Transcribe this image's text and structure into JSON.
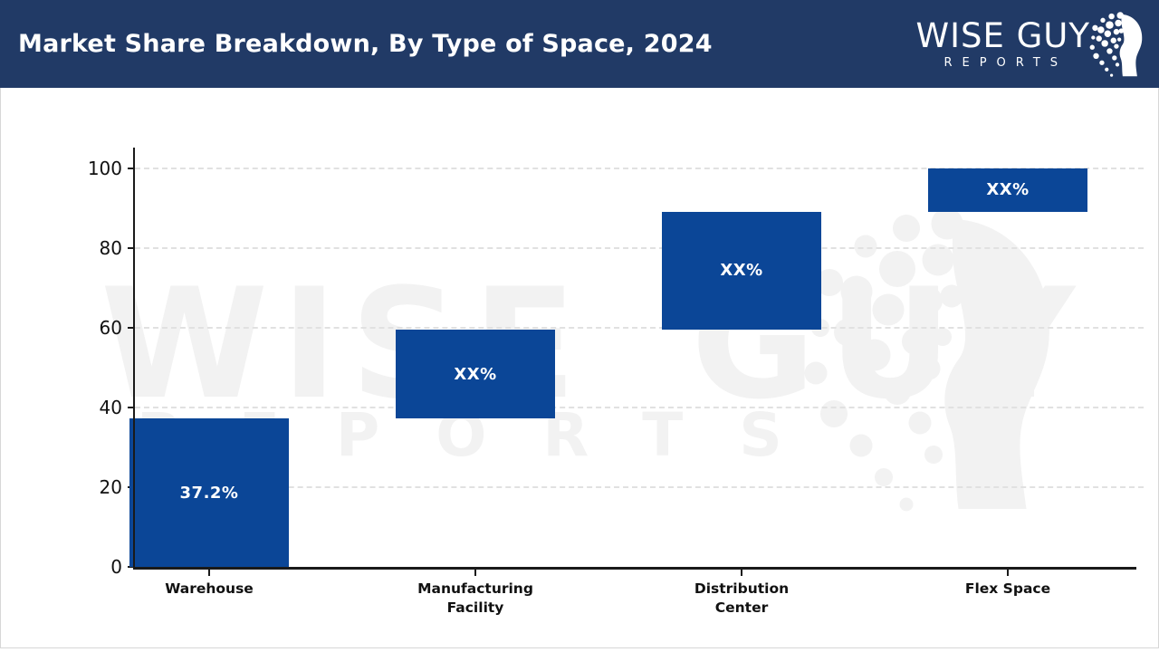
{
  "header": {
    "title": "Market Share Breakdown, By Type of Space, 2024",
    "logo": {
      "line1": "WISE GUY",
      "line2": "REPORTS"
    }
  },
  "watermark": {
    "line1": "WISE GUY",
    "line2": "REPORTS"
  },
  "chart_data": {
    "type": "bar",
    "subtype": "waterfall-floating-bars",
    "title": "Market Share Breakdown, By Type of Space, 2024",
    "xlabel": "",
    "ylabel": "",
    "ylim": [
      0,
      106
    ],
    "yticks": [
      0,
      20,
      40,
      60,
      80,
      100
    ],
    "grid": "horizontal-dashed",
    "legend": "none",
    "categories": [
      "Warehouse",
      "Manufacturing Facility",
      "Distribution Center",
      "Flex Space"
    ],
    "segments": [
      {
        "category": "Warehouse",
        "lines": [
          "Warehouse"
        ],
        "start": 0,
        "end": 37.2,
        "label": "37.2%"
      },
      {
        "category": "Manufacturing Facility",
        "lines": [
          "Manufacturing",
          "Facility"
        ],
        "start": 37.2,
        "end": 59.5,
        "label": "XX%"
      },
      {
        "category": "Distribution Center",
        "lines": [
          "Distribution",
          "Center"
        ],
        "start": 59.5,
        "end": 89.2,
        "label": "XX%"
      },
      {
        "category": "Flex Space",
        "lines": [
          "Flex Space"
        ],
        "start": 89.2,
        "end": 100,
        "label": "XX%"
      }
    ]
  },
  "colors": {
    "header_bg": "#213a66",
    "bar": "#0b4697",
    "bar_label": "#ffffff",
    "grid": "#e1e1e1",
    "axis": "#1a1a1a",
    "watermark": "#f2f2f2",
    "border": "#d7d7d7"
  }
}
